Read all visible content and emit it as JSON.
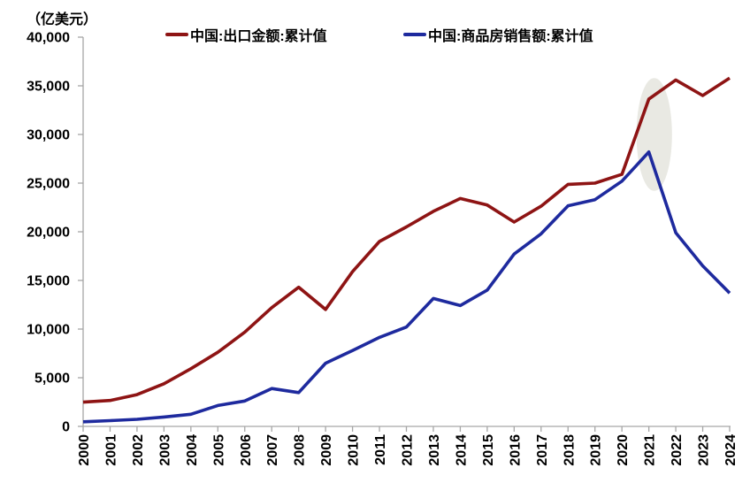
{
  "chart_data": {
    "type": "line",
    "title": "",
    "unit_label": "（亿美元）",
    "xlabel": "",
    "ylabel": "亿美元",
    "x": [
      2000,
      2001,
      2002,
      2003,
      2004,
      2005,
      2006,
      2007,
      2008,
      2009,
      2010,
      2011,
      2012,
      2013,
      2014,
      2015,
      2016,
      2017,
      2018,
      2019,
      2020,
      2021,
      2022,
      2023,
      2024
    ],
    "series": [
      {
        "name": "中国:出口金额:累计值",
        "color": "#8e1414",
        "values": [
          2490,
          2660,
          3260,
          4380,
          5930,
          7620,
          9690,
          12200,
          14300,
          12020,
          15900,
          19000,
          20500,
          22100,
          23420,
          22750,
          21000,
          22630,
          24870,
          25000,
          25900,
          33640,
          35600,
          34000,
          35800
        ]
      },
      {
        "name": "中国:商品房销售额:累计值",
        "color": "#1e2a9e",
        "values": [
          470,
          590,
          730,
          960,
          1250,
          2150,
          2610,
          3890,
          3470,
          6490,
          7800,
          9150,
          10210,
          13150,
          12420,
          14010,
          17710,
          19790,
          22670,
          23300,
          25200,
          28200,
          19900,
          16500,
          13700
        ]
      }
    ],
    "ylim": [
      0,
      40000
    ],
    "y_tick_step": 5000,
    "grid": false,
    "legend_position": "top",
    "axis_color": "#a6a6a6",
    "annotation": {
      "shape": "ellipse",
      "center_year": 2021.2,
      "center_value": 30000,
      "radius_years": 0.66,
      "radius_value": 5800,
      "color": "#e8e8e1",
      "opacity": 0.95
    }
  }
}
